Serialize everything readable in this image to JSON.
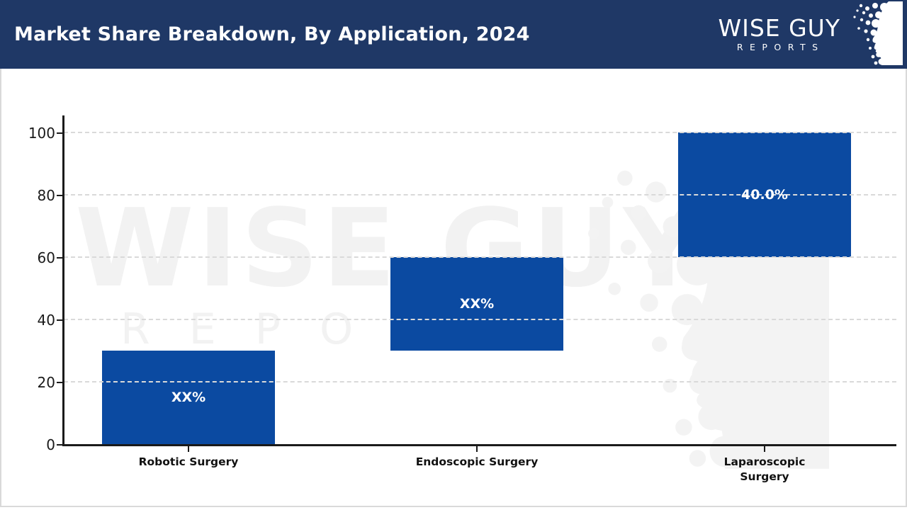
{
  "header": {
    "title": "Market Share Breakdown, By Application, 2024",
    "background": "#1f3866",
    "logo": {
      "line1": "WISE GUY",
      "line2": "REPORTS"
    }
  },
  "watermark": {
    "line1": "WISE GUY",
    "line2": "R E P O R T S",
    "color": "#f2f2f2"
  },
  "chart_data": {
    "type": "bar",
    "variant": "waterfall",
    "title": "Market Share Breakdown, By Application, 2024",
    "categories": [
      "Robotic Surgery",
      "Endoscopic Surgery",
      "Laparoscopic Surgery"
    ],
    "bars": [
      {
        "category": "Robotic Surgery",
        "start": 0,
        "end": 30,
        "label": "XX%"
      },
      {
        "category": "Endoscopic Surgery",
        "start": 30,
        "end": 60,
        "label": "XX%"
      },
      {
        "category": "Laparoscopic Surgery",
        "start": 60,
        "end": 100,
        "label": "40.0%"
      }
    ],
    "tick_label_lines": [
      [
        "Robotic Surgery"
      ],
      [
        "Endoscopic Surgery"
      ],
      [
        "Laparoscopic",
        "Surgery"
      ]
    ],
    "ylim": [
      0,
      100
    ],
    "yticks": [
      0,
      20,
      40,
      60,
      80,
      100
    ],
    "grid": "horizontal-dashed",
    "legend": "none",
    "bar_color": "#0b4aa1",
    "bar_value_color": "#ffffff",
    "axis_color": "#1a1a1a",
    "gridline_color": "#d9d9d9"
  }
}
